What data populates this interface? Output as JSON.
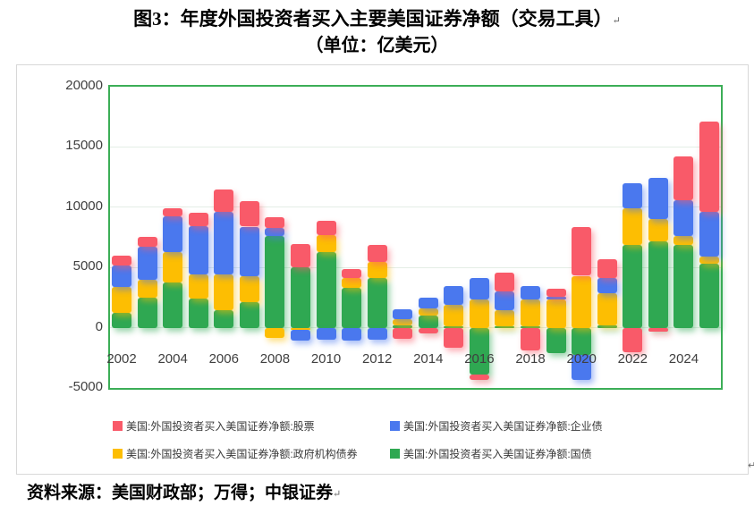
{
  "title": {
    "line1": "图3：年度外国投资者买入主要美国证券净额（交易工具）",
    "line2": "（单位：亿美元）",
    "return_mark": "↵"
  },
  "source": {
    "text": "资料来源：美国财政部；万得；中银证券"
  },
  "colors": {
    "stocks_red": "#F95A69",
    "corporate_blue": "#4A78EE",
    "agency_yellow": "#FDBE02",
    "treasury_green": "#2FA852",
    "plot_border_green": "#3CAE57",
    "box_border_gray": "#D8D8D8",
    "tick_label_gray": "#3F3F3F"
  },
  "chart_data": {
    "type": "bar",
    "stacked": true,
    "unit": "亿美元",
    "grid": "horizontal",
    "legend_position": "bottom",
    "ylim": [
      -5000,
      20000
    ],
    "y_ticks": [
      20000,
      15000,
      10000,
      5000,
      0,
      -5000
    ],
    "y_tick_labels": [
      "20000",
      "15000",
      "10000",
      "5000",
      "0",
      "-5000"
    ],
    "categories": [
      2002,
      2003,
      2004,
      2005,
      2006,
      2007,
      2008,
      2009,
      2010,
      2011,
      2012,
      2013,
      2014,
      2015,
      2016,
      2017,
      2018,
      2019,
      2020,
      2021,
      2022,
      2023,
      2024,
      2025
    ],
    "x_tick_labels": [
      "2002",
      "2004",
      "2006",
      "2008",
      "2010",
      "2012",
      "2014",
      "2016",
      "2018",
      "2020",
      "2022",
      "2024"
    ],
    "stack_order_bottom_to_top": [
      "国债",
      "政府机构债券",
      "企业债",
      "股票"
    ],
    "series": [
      {
        "name": "美国:外国投资者买入美国证券净额:股票",
        "color": "#F95A69",
        "values": [
          820,
          820,
          670,
          1110,
          1860,
          2150,
          890,
          1900,
          1190,
          740,
          1410,
          -950,
          -500,
          -1650,
          -450,
          1560,
          -1850,
          680,
          4010,
          1560,
          -2010,
          -300,
          3640,
          7500
        ]
      },
      {
        "name": "美国:外国投资者买入美国证券净额:企业债",
        "color": "#4A78EE",
        "values": [
          1780,
          2750,
          2970,
          4010,
          5200,
          4090,
          670,
          -900,
          -1000,
          -1100,
          -1000,
          820,
          890,
          1560,
          1710,
          1490,
          1110,
          150,
          -2080,
          1260,
          2080,
          3420,
          2970,
          3710
        ]
      },
      {
        "name": "美国:外国投资者买入美国证券净额:政府机构债券",
        "color": "#FDBE02",
        "values": [
          2150,
          1480,
          2450,
          2000,
          2900,
          2150,
          -820,
          -150,
          1340,
          820,
          1340,
          520,
          590,
          1780,
          2380,
          1340,
          2230,
          2380,
          4310,
          2670,
          3050,
          1860,
          740,
          590
        ]
      },
      {
        "name": "美国:外国投资者买入美国证券净额:国债",
        "color": "#2FA852",
        "values": [
          1260,
          2520,
          3790,
          2450,
          1490,
          2150,
          7580,
          5050,
          6310,
          3300,
          4090,
          220,
          1040,
          100,
          -3860,
          150,
          150,
          -2080,
          -2230,
          200,
          6840,
          7130,
          6840,
          5280
        ]
      }
    ]
  }
}
